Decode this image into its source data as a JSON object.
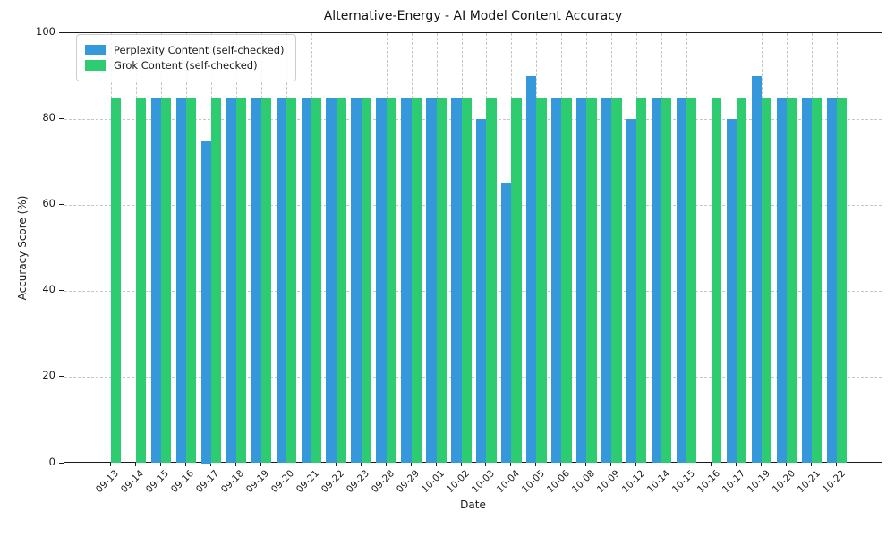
{
  "title": "Alternative-Energy - AI Model Content Accuracy",
  "chart_data": {
    "type": "bar",
    "title": "Alternative-Energy - AI Model Content Accuracy",
    "xlabel": "Date",
    "ylabel": "Accuracy Score (%)",
    "ylim": [
      0,
      100
    ],
    "yticks": [
      0,
      20,
      40,
      60,
      80,
      100
    ],
    "grid": true,
    "legend_position": "upper-left",
    "categories": [
      "09-13",
      "09-14",
      "09-15",
      "09-16",
      "09-17",
      "09-18",
      "09-19",
      "09-20",
      "09-21",
      "09-22",
      "09-23",
      "09-28",
      "09-29",
      "10-01",
      "10-02",
      "10-03",
      "10-04",
      "10-05",
      "10-06",
      "10-08",
      "10-09",
      "10-12",
      "10-14",
      "10-15",
      "10-16",
      "10-17",
      "10-19",
      "10-20",
      "10-21",
      "10-22"
    ],
    "series": [
      {
        "name": "Perplexity Content (self-checked)",
        "color": "#3498db",
        "values": [
          null,
          null,
          85,
          85,
          75,
          85,
          85,
          85,
          85,
          85,
          85,
          85,
          85,
          85,
          85,
          80,
          65,
          90,
          85,
          85,
          85,
          80,
          85,
          85,
          null,
          80,
          90,
          85,
          85,
          85
        ]
      },
      {
        "name": "Grok Content (self-checked)",
        "color": "#2ecc71",
        "values": [
          85,
          85,
          85,
          85,
          85,
          85,
          85,
          85,
          85,
          85,
          85,
          85,
          85,
          85,
          85,
          85,
          85,
          85,
          85,
          85,
          85,
          85,
          85,
          85,
          85,
          85,
          85,
          85,
          85,
          85
        ]
      }
    ]
  }
}
